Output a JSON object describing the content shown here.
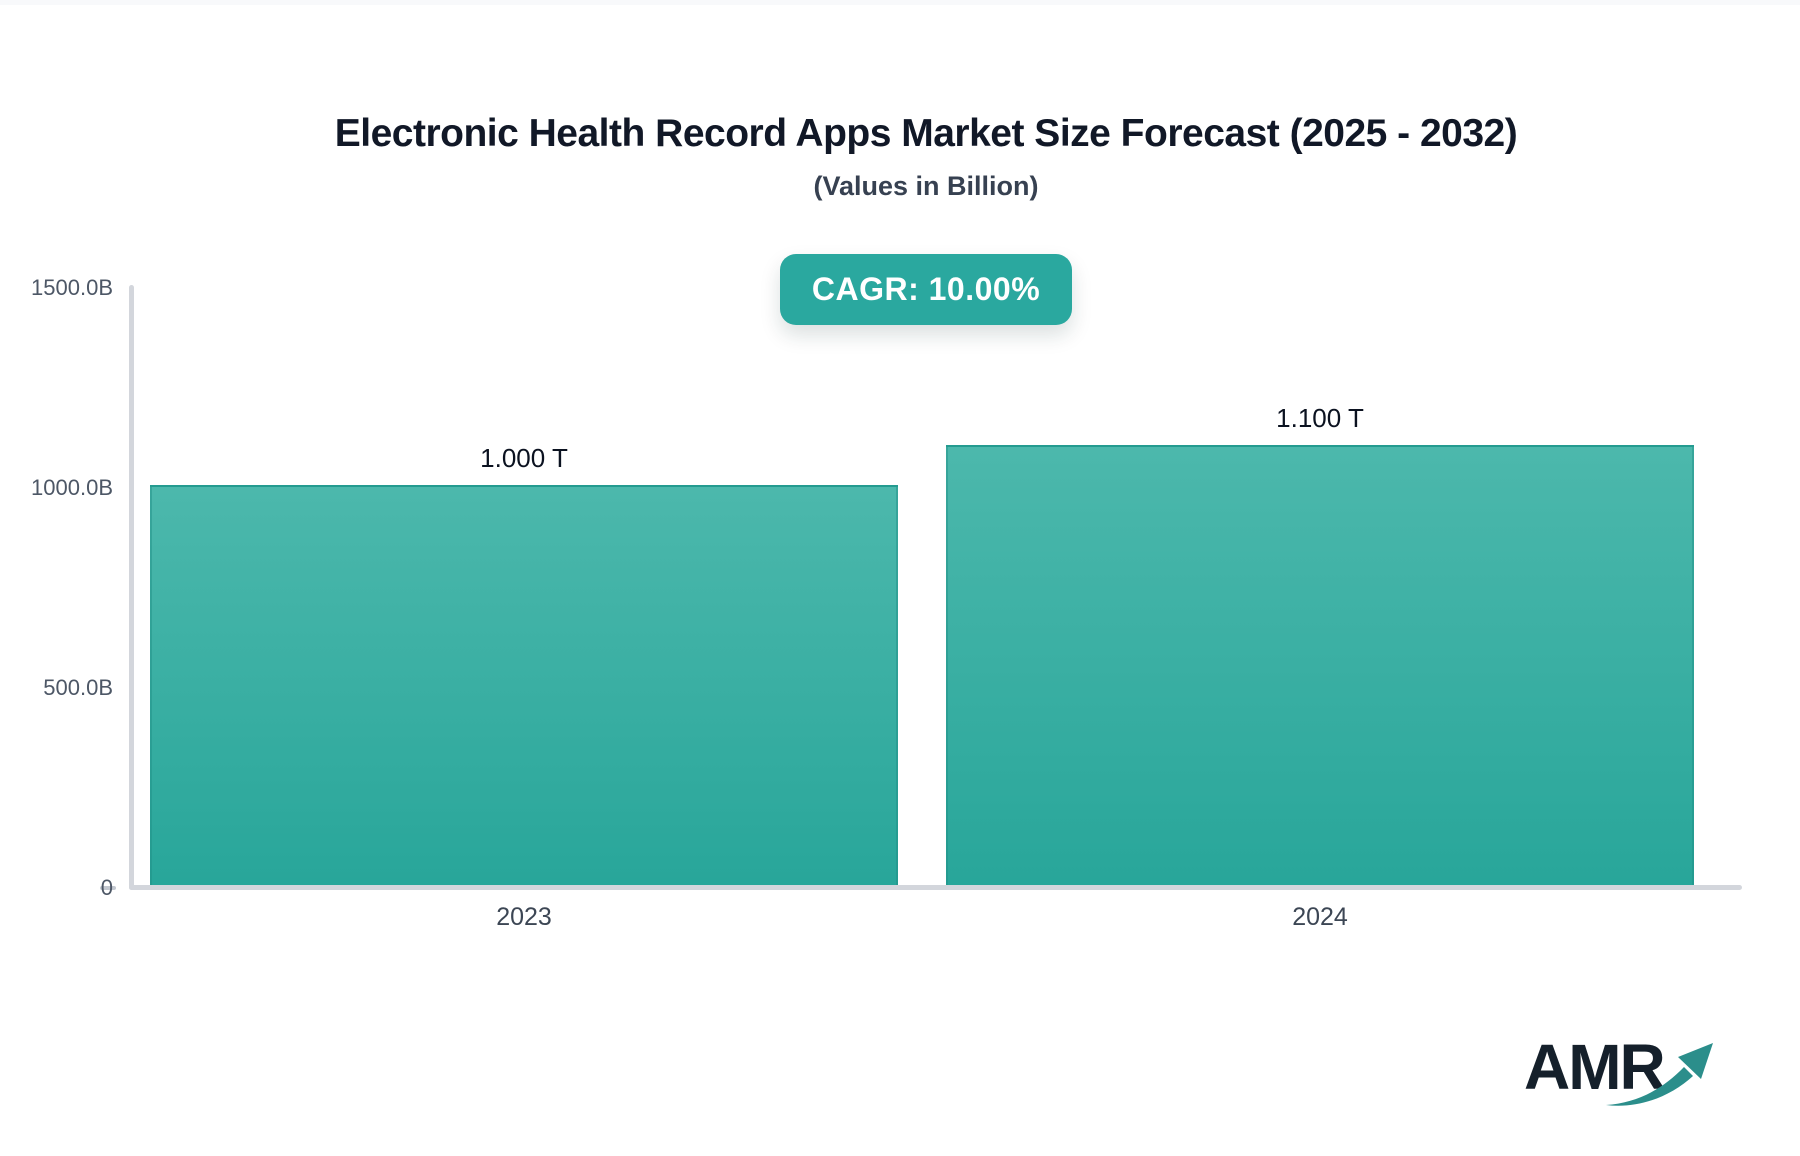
{
  "header": {
    "title": "Electronic Health Record Apps Market Size Forecast (2025 - 2032)",
    "subtitle": "(Values in Billion)",
    "cagr_label": "CAGR: 10.00%"
  },
  "chart_data": {
    "type": "bar",
    "title": "Electronic Health Record Apps Market Size Forecast (2025 - 2032)",
    "subtitle": "(Values in Billion)",
    "unit": "Billion",
    "cagr_percent": "10.00%",
    "categories": [
      "2023",
      "2024"
    ],
    "values": [
      1000,
      1100
    ],
    "value_labels": [
      "1.000 T",
      "1.100 T"
    ],
    "ylim": [
      0,
      1500
    ],
    "y_ticks": [
      {
        "label": "1500.0B",
        "value": 1500
      },
      {
        "label": "1000.0B",
        "value": 1000
      },
      {
        "label": "500.0B",
        "value": 500
      },
      {
        "label": "0",
        "value": 0
      }
    ],
    "grid": false,
    "legend": "none",
    "bar_color_top": "#4cb8ac",
    "bar_color_bottom": "#28a69a",
    "accent_color": "#2aa89f",
    "axis_color": "#d3d6dc"
  },
  "logo": {
    "text": "AMR"
  }
}
